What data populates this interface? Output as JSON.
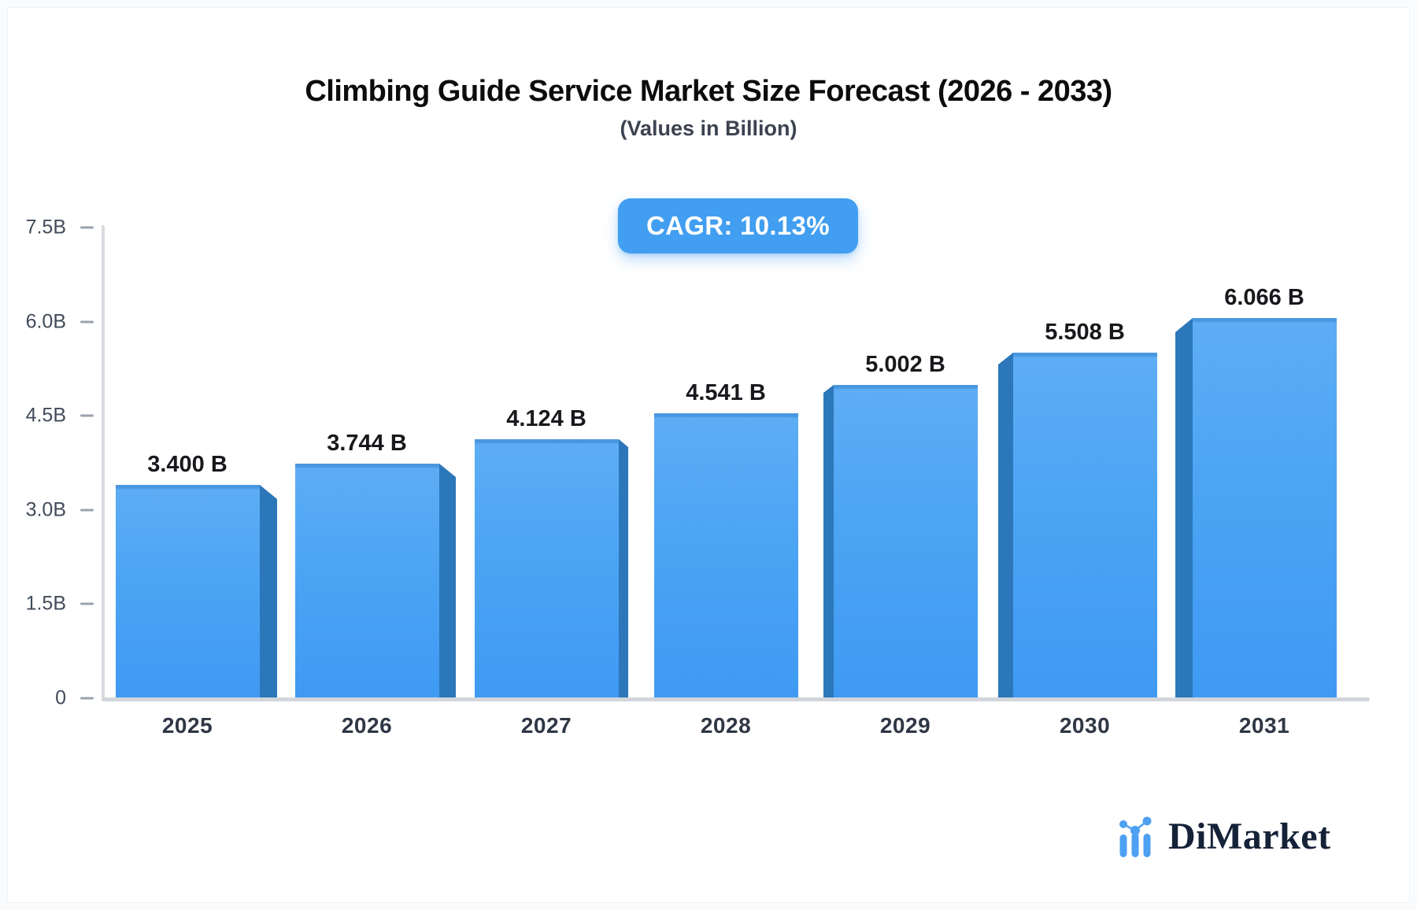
{
  "header": {
    "title": "Climbing Guide Service Market Size Forecast (2026 - 2033)",
    "subtitle": "(Values in Billion)",
    "cagr_label": "CAGR: 10.13%"
  },
  "chart_data": {
    "type": "bar",
    "categories": [
      "2025",
      "2026",
      "2027",
      "2028",
      "2029",
      "2030",
      "2031"
    ],
    "values": [
      3.4,
      3.744,
      4.124,
      4.541,
      5.002,
      5.508,
      6.066
    ],
    "value_labels": [
      "3.400 B",
      "3.744 B",
      "4.124 B",
      "4.541 B",
      "5.002 B",
      "5.508 B",
      "6.066 B"
    ],
    "ytick_labels": [
      "7.5B",
      "6.0B",
      "4.5B",
      "3.0B",
      "1.5B",
      "0"
    ],
    "ytick_values": [
      7.5,
      6.0,
      4.5,
      3.0,
      1.5,
      0
    ],
    "ylim": [
      0,
      7.5
    ],
    "grid": false,
    "legend_position": "none",
    "title": "Climbing Guide Service Market Size Forecast (2026 - 2033)",
    "xlabel": "",
    "ylabel": ""
  },
  "colors": {
    "bar_top": "#5dadf5",
    "bar_bottom": "#3f9af3",
    "bar_side": "#2c77ba",
    "badge_blue": "#419ef0",
    "axis_gray": "#d2d6dc",
    "logo_blue": "#4da0f2",
    "logo_navy": "#152238"
  },
  "branding": {
    "logo_text": "DiMarket"
  }
}
